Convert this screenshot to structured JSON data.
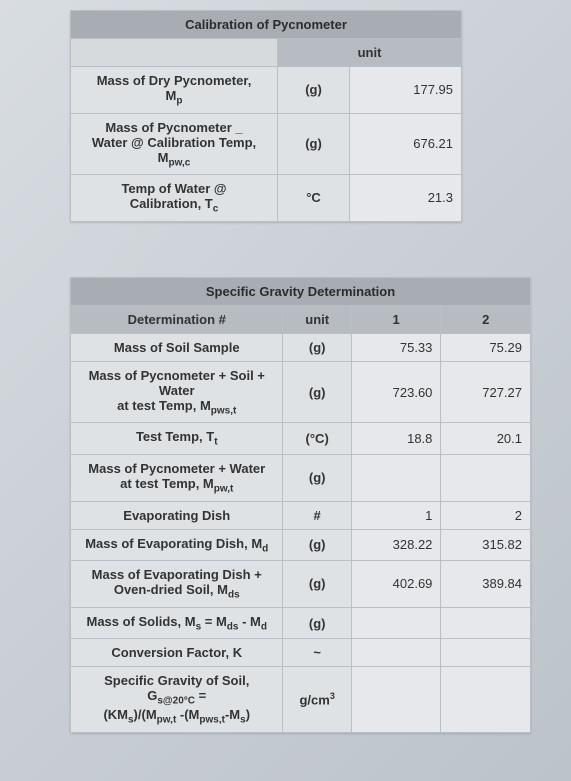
{
  "table1": {
    "title": "Calibration of Pycnometer",
    "unit_header": "unit",
    "rows": [
      {
        "label_html": "Mass of Dry Pycnometer,<br>M<span class='small-sub'>p</span>",
        "unit": "(g)",
        "value": "177.95"
      },
      {
        "label_html": "Mass of Pycnometer _<br>Water @ Calibration Temp,<br>M<span class='small-sub'>pw,c</span>",
        "unit": "(g)",
        "value": "676.21"
      },
      {
        "label_html": "Temp of Water @<br>Calibration, T<span class='small-sub'>c</span>",
        "unit": "°C",
        "value": "21.3"
      }
    ]
  },
  "table2": {
    "title": "Specific Gravity Determination",
    "det_header": "Determination #",
    "unit_header": "unit",
    "col1": "1",
    "col2": "2",
    "rows": [
      {
        "label_html": "Mass of Soil Sample",
        "unit": "(g)",
        "v1": "75.33",
        "v2": "75.29"
      },
      {
        "label_html": "Mass of Pycnometer + Soil +<br>Water<br>at test Temp, M<span class='small-sub'>pws,t</span>",
        "unit": "(g)",
        "v1": "723.60",
        "v2": "727.27"
      },
      {
        "label_html": "Test Temp, T<span class='small-sub'>t</span>",
        "unit": "(°C)",
        "v1": "18.8",
        "v2": "20.1"
      },
      {
        "label_html": "Mass of Pycnometer + Water<br>at test Temp, M<span class='small-sub'>pw,t</span>",
        "unit": "(g)",
        "v1": "",
        "v2": ""
      },
      {
        "label_html": "Evaporating Dish",
        "unit": "#",
        "v1": "1",
        "v2": "2"
      },
      {
        "label_html": "Mass of Evaporating Dish, M<span class='small-sub'>d</span>",
        "unit": "(g)",
        "v1": "328.22",
        "v2": "315.82"
      },
      {
        "label_html": "Mass of Evaporating Dish +<br>Oven-dried Soil, M<span class='small-sub'>ds</span>",
        "unit": "(g)",
        "v1": "402.69",
        "v2": "389.84"
      },
      {
        "label_html": "Mass of Solids, M<span class='small-sub'>s</span> = M<span class='small-sub'>ds</span> - M<span class='small-sub'>d</span>",
        "unit": "(g)",
        "v1": "",
        "v2": ""
      },
      {
        "label_html": "Conversion Factor, K",
        "unit": "~",
        "v1": "",
        "v2": ""
      },
      {
        "label_html": "Specific Gravity of Soil,<br>G<span class='small-sub'>s@20°C</span> =<br>(KM<span class='small-sub'>s</span>)/(M<span class='small-sub'>pw,t</span> -(M<span class='small-sub'>pws,t</span>-M<span class='small-sub'>s</span>)",
        "unit_html": "g/cm<span class='sup'>3</span>",
        "v1": "",
        "v2": ""
      }
    ]
  },
  "colors": {
    "header_bg": "#a7adb3",
    "subheader_bg": "#b7bcc2",
    "cell_bg": "#dfe2e5",
    "value_bg": "#e6e8eb",
    "border": "#b9bfc5"
  }
}
